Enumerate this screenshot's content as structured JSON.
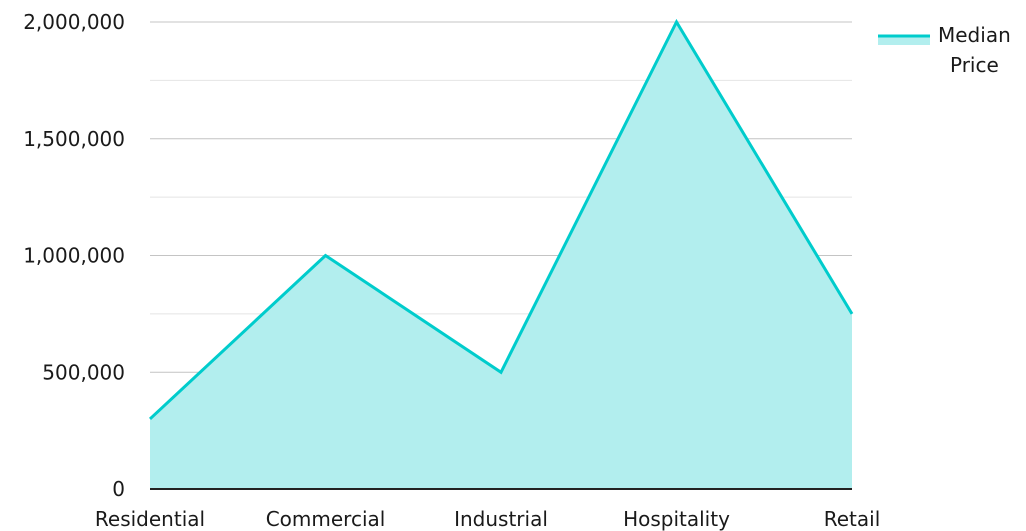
{
  "chart_data": {
    "type": "area",
    "categories": [
      "Residential",
      "Commercial",
      "Industrial",
      "Hospitality",
      "Retail"
    ],
    "series": [
      {
        "name": "Median Price",
        "values": [
          300000,
          1000000,
          500000,
          2000000,
          750000
        ]
      }
    ],
    "ylim": [
      0,
      2000000
    ],
    "yticks": [
      "0",
      "500,000",
      "1,000,000",
      "1,500,000",
      "2,000,000"
    ],
    "grid": true,
    "legend_position": "top-right",
    "colors": {
      "line": "#00cccc",
      "fill": "#b2eeee",
      "grid_major": "#c4c4c4",
      "grid_minor": "#e4e4e4",
      "axis": "#222222"
    },
    "legend": {
      "line1": "Median",
      "line2": "Price"
    }
  }
}
